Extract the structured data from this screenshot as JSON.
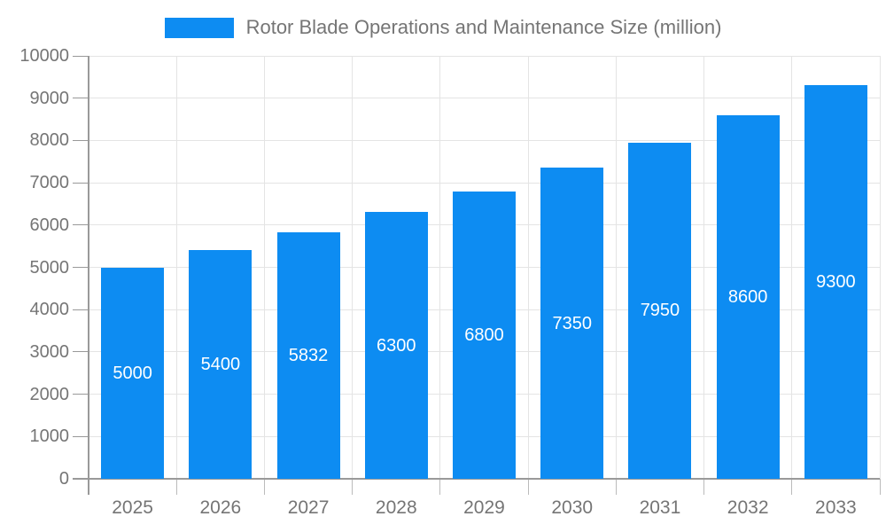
{
  "chart_data": {
    "type": "bar",
    "title": "Rotor Blade Operations and Maintenance Size (million)",
    "categories": [
      "2025",
      "2026",
      "2027",
      "2028",
      "2029",
      "2030",
      "2031",
      "2032",
      "2033"
    ],
    "values": [
      5000,
      5400,
      5832,
      6300,
      6800,
      7350,
      7950,
      8600,
      9300
    ],
    "xlabel": "",
    "ylabel": "",
    "ylim": [
      0,
      10000
    ],
    "ytick_step": 1000,
    "grid": true,
    "legend_position": "top",
    "colors": {
      "bar": "#0d8cf2",
      "bar_label": "#ffffff",
      "axis": "#999999",
      "gridline": "#e4e4e4",
      "text": "#757575"
    }
  }
}
